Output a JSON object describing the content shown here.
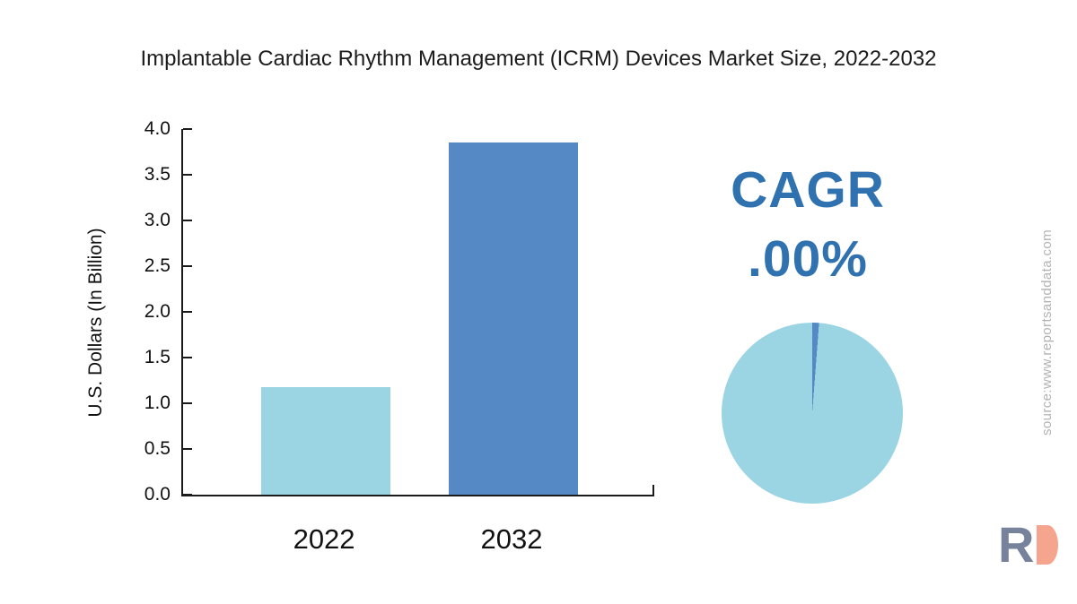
{
  "chart_data": [
    {
      "type": "bar",
      "title": "Implantable Cardiac Rhythm Management (ICRM) Devices Market Size, 2022-2032",
      "categories": [
        "2022",
        "2032"
      ],
      "values": [
        1.18,
        3.85
      ],
      "bar_colors": [
        "#9bd5e3",
        "#5589c5"
      ],
      "xlabel": "",
      "ylabel": "U.S. Dollars (In Billion)",
      "ylim": [
        0,
        4
      ],
      "yticks": [
        0.0,
        0.5,
        1.0,
        1.5,
        2.0,
        2.5,
        3.0,
        3.5,
        4.0
      ],
      "ytick_labels": [
        "0.0",
        "0.5",
        "1.0",
        "1.5",
        "2.0",
        "2.5",
        "3.0",
        "3.5",
        "4.0"
      ],
      "grid": false,
      "legend": "none"
    },
    {
      "type": "pie",
      "slices": [
        {
          "name": "cagr-sliver",
          "percent": 1.2,
          "color": "#5589c5"
        },
        {
          "name": "remainder",
          "percent": 98.8,
          "color": "#9bd5e3"
        }
      ],
      "legend": "none"
    }
  ],
  "cagr": {
    "label": "CAGR",
    "value": ".00%",
    "color": "#3072b0"
  },
  "watermark": "source:www.reportsanddata.com",
  "logo": {
    "letter_r": "R"
  }
}
